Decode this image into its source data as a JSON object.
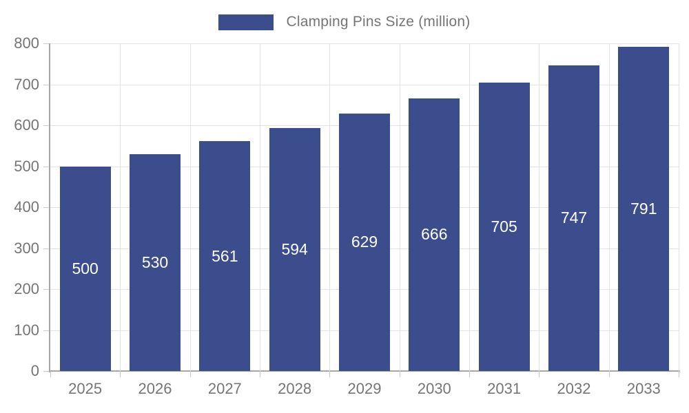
{
  "legend": {
    "items": [
      {
        "label": "Clamping Pins Size (million)"
      }
    ]
  },
  "colors": {
    "bar": "#3b4d8c",
    "bar_label": "#ffffff",
    "grid": "#e3e3e3",
    "axis": "#a6a6a6",
    "tick": "#c9c9c9",
    "tick_text": "#757575",
    "legend_text": "#757575",
    "background": "#ffffff"
  },
  "chart_data": {
    "type": "bar",
    "title": "Clamping Pins Size (million)",
    "categories": [
      "2025",
      "2026",
      "2027",
      "2028",
      "2029",
      "2030",
      "2031",
      "2032",
      "2033"
    ],
    "values": [
      500,
      530,
      561,
      594,
      629,
      666,
      705,
      747,
      791
    ],
    "xlabel": "",
    "ylabel": "",
    "ylim": [
      0,
      800
    ],
    "yticks": [
      0,
      100,
      200,
      300,
      400,
      500,
      600,
      700,
      800
    ],
    "grid": true,
    "legend_position": "top",
    "bar_value_labels": "centered-white"
  }
}
